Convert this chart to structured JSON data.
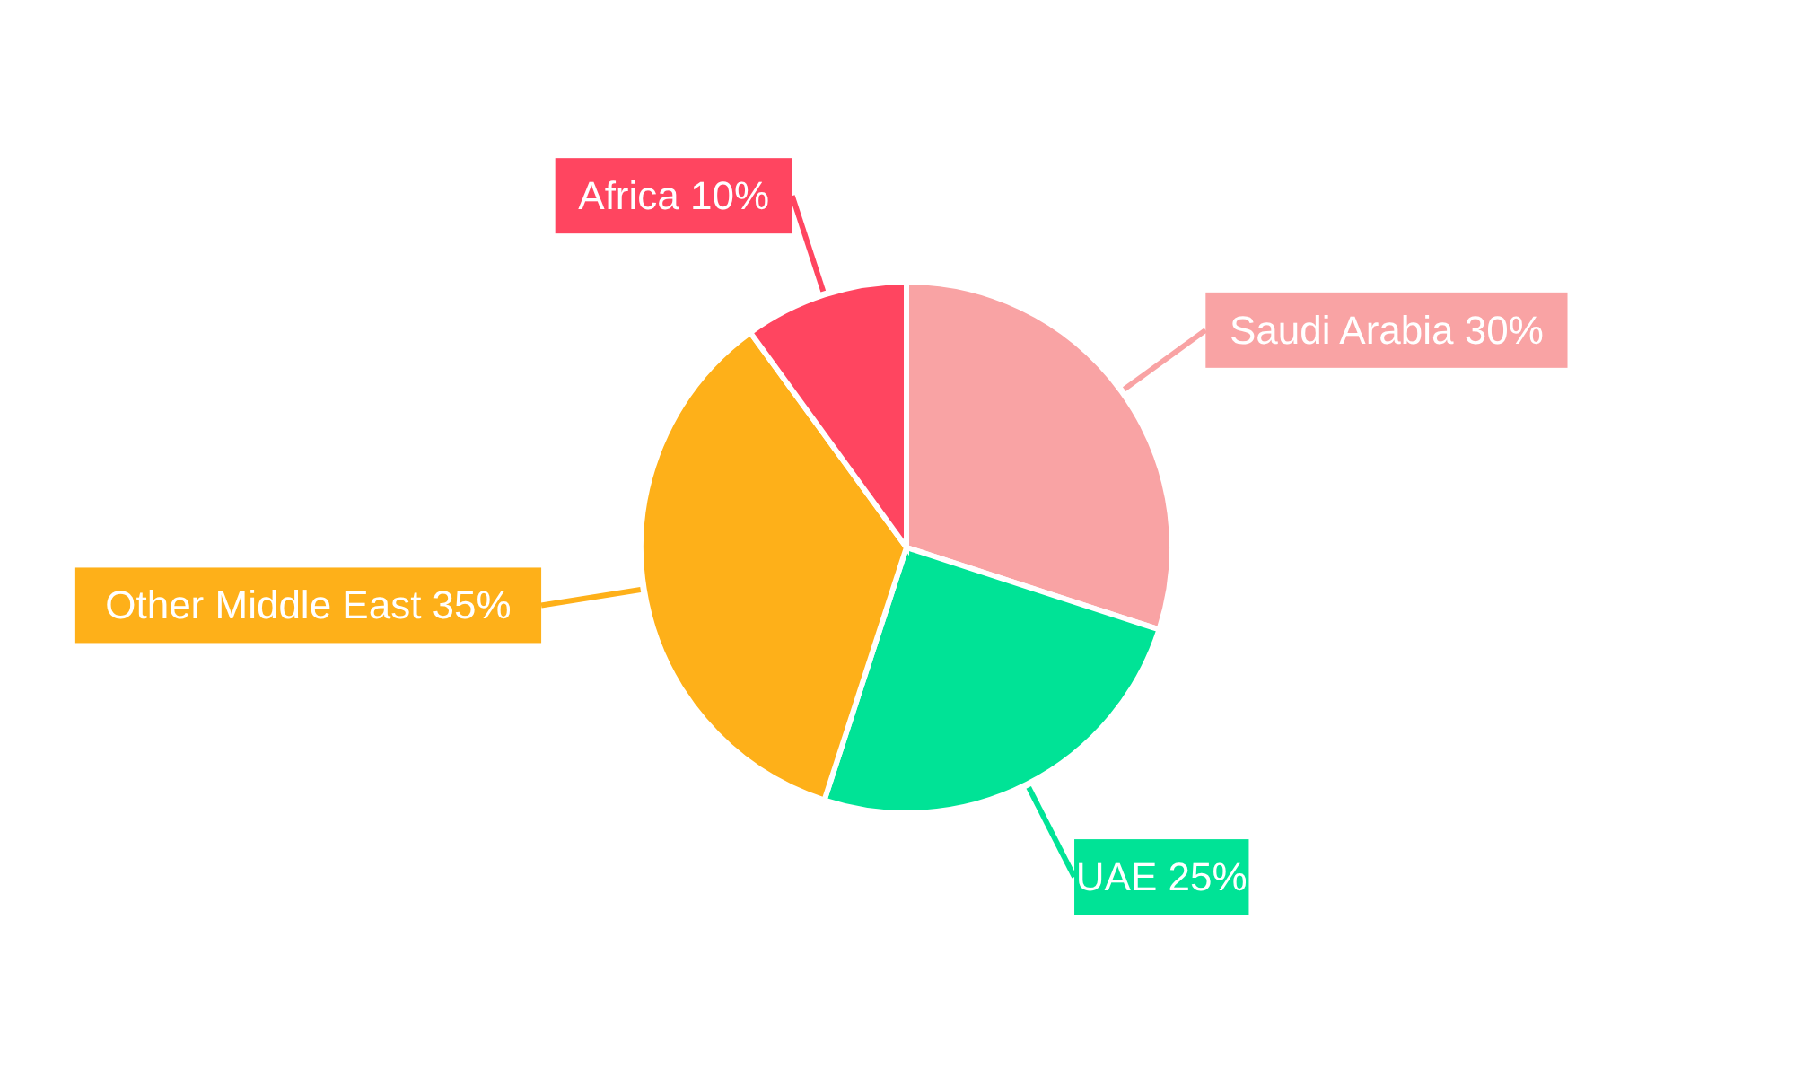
{
  "chart_data": {
    "type": "pie",
    "categories": [
      "Saudi Arabia",
      "UAE",
      "Other Middle East",
      "Africa"
    ],
    "values": [
      30,
      25,
      35,
      10
    ],
    "value_labels": [
      "30%",
      "25%",
      "35%",
      "10%"
    ],
    "colors": [
      "#f9a3a4",
      "#00e396",
      "#feb019",
      "#ff4560"
    ]
  }
}
